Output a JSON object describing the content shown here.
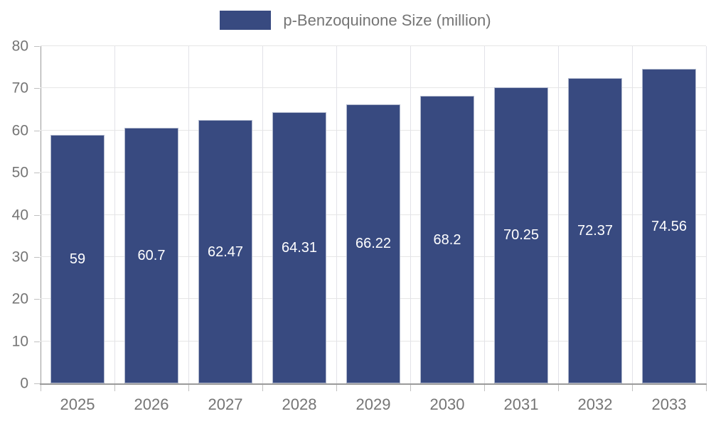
{
  "chart_data": {
    "type": "bar",
    "title": "",
    "categories": [
      "2025",
      "2026",
      "2027",
      "2028",
      "2029",
      "2030",
      "2031",
      "2032",
      "2033"
    ],
    "series": [
      {
        "name": "p-Benzoquinone Size (million)",
        "values": [
          59,
          60.7,
          62.47,
          64.31,
          66.22,
          68.2,
          70.25,
          72.37,
          74.56
        ]
      }
    ],
    "xlabel": "",
    "ylabel": "",
    "ylim": [
      0,
      80
    ],
    "yticks": [
      0,
      10,
      20,
      30,
      40,
      50,
      60,
      70,
      80
    ],
    "grid": "on",
    "legend_position": "top",
    "value_labels_position": "middle-of-bar",
    "colors": {
      "bar": "#384a80",
      "bar_border": "#c6cbda",
      "value_label": "#ffffff",
      "axis_text": "#757575",
      "hgrid": "#e6e6e6",
      "vgrid": "#e2e2e8",
      "axis_line": "#9a9a9a",
      "tick_mark": "#c0c0c0"
    }
  }
}
